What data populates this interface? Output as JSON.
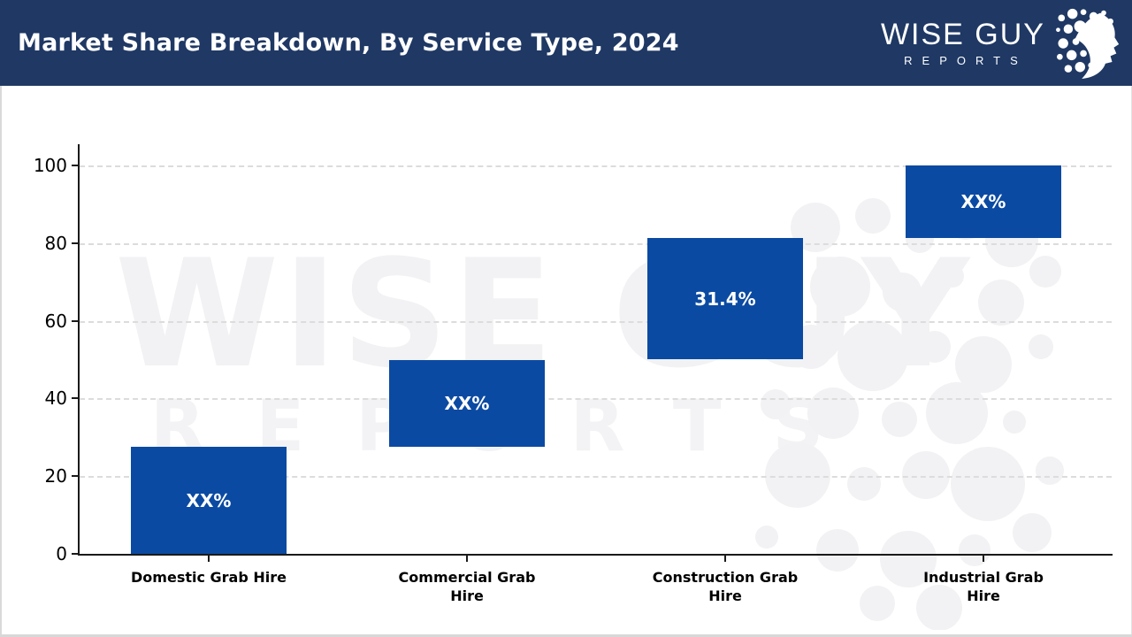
{
  "header": {
    "title": "Market Share Breakdown, By Service Type, 2024",
    "background_color": "#1f3864",
    "logo": {
      "line1": "WISE GUY",
      "line2": "REPORTS"
    }
  },
  "watermark": {
    "line1": "WISE GUY",
    "line2": "REPORTS"
  },
  "chart_data": {
    "type": "bar",
    "variant": "waterfall",
    "title": "Market Share Breakdown, By Service Type, 2024",
    "categories": [
      "Domestic Grab Hire",
      "Commercial Grab\nHire",
      "Construction Grab\nHire",
      "Industrial Grab\nHire"
    ],
    "series": [
      {
        "name": "Market share (%)",
        "segments": [
          {
            "category": "Domestic Grab Hire",
            "start": 0,
            "end": 27.5,
            "label": "XX%"
          },
          {
            "category": "Commercial Grab Hire",
            "start": 27.5,
            "end": 50,
            "label": "XX%"
          },
          {
            "category": "Construction Grab Hire",
            "start": 50,
            "end": 81.4,
            "label": "31.4%"
          },
          {
            "category": "Industrial Grab Hire",
            "start": 81.4,
            "end": 100,
            "label": "XX%"
          }
        ]
      }
    ],
    "xlabel": "",
    "ylabel": "",
    "ylim": [
      0,
      100
    ],
    "yticks": [
      0,
      20,
      40,
      60,
      80,
      100
    ],
    "grid": {
      "horizontal": true,
      "style": "dashed",
      "color": "#dcdcdc"
    },
    "legend": "none",
    "bar_color": "#0b4aa2",
    "bar_label_color": "#ffffff",
    "axis_color": "#1a1a1a",
    "tick_label_color": "#000000"
  }
}
